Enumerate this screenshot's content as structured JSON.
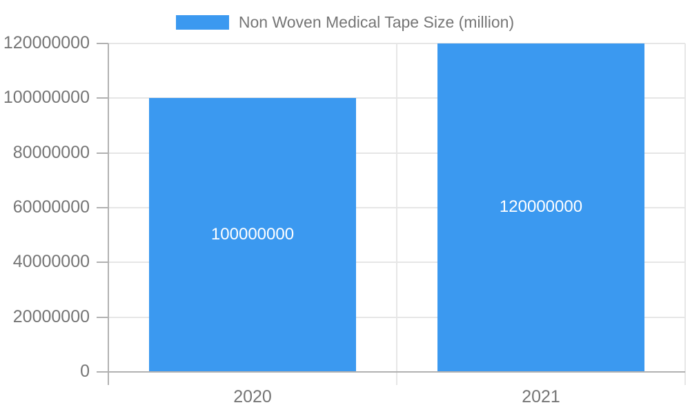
{
  "chart_data": {
    "type": "bar",
    "title": "Non Woven Medical Tape Size (million)",
    "categories": [
      "2020",
      "2021"
    ],
    "values": [
      100000000,
      120000000
    ],
    "bar_labels": [
      "100000000",
      "120000000"
    ],
    "ylim": [
      0,
      120000000
    ],
    "ytick_step": 20000000,
    "ytick_labels": [
      "0",
      "20000000",
      "40000000",
      "60000000",
      "80000000",
      "100000000",
      "120000000"
    ],
    "xlabel": "",
    "ylabel": "",
    "grid": true,
    "legend_position": "top",
    "colors": {
      "bar": "#3B99F0",
      "bar_label": "#FFFFFF",
      "axis": "#B1B1B1",
      "grid": "#E6E6E6",
      "text": "#757575"
    }
  }
}
